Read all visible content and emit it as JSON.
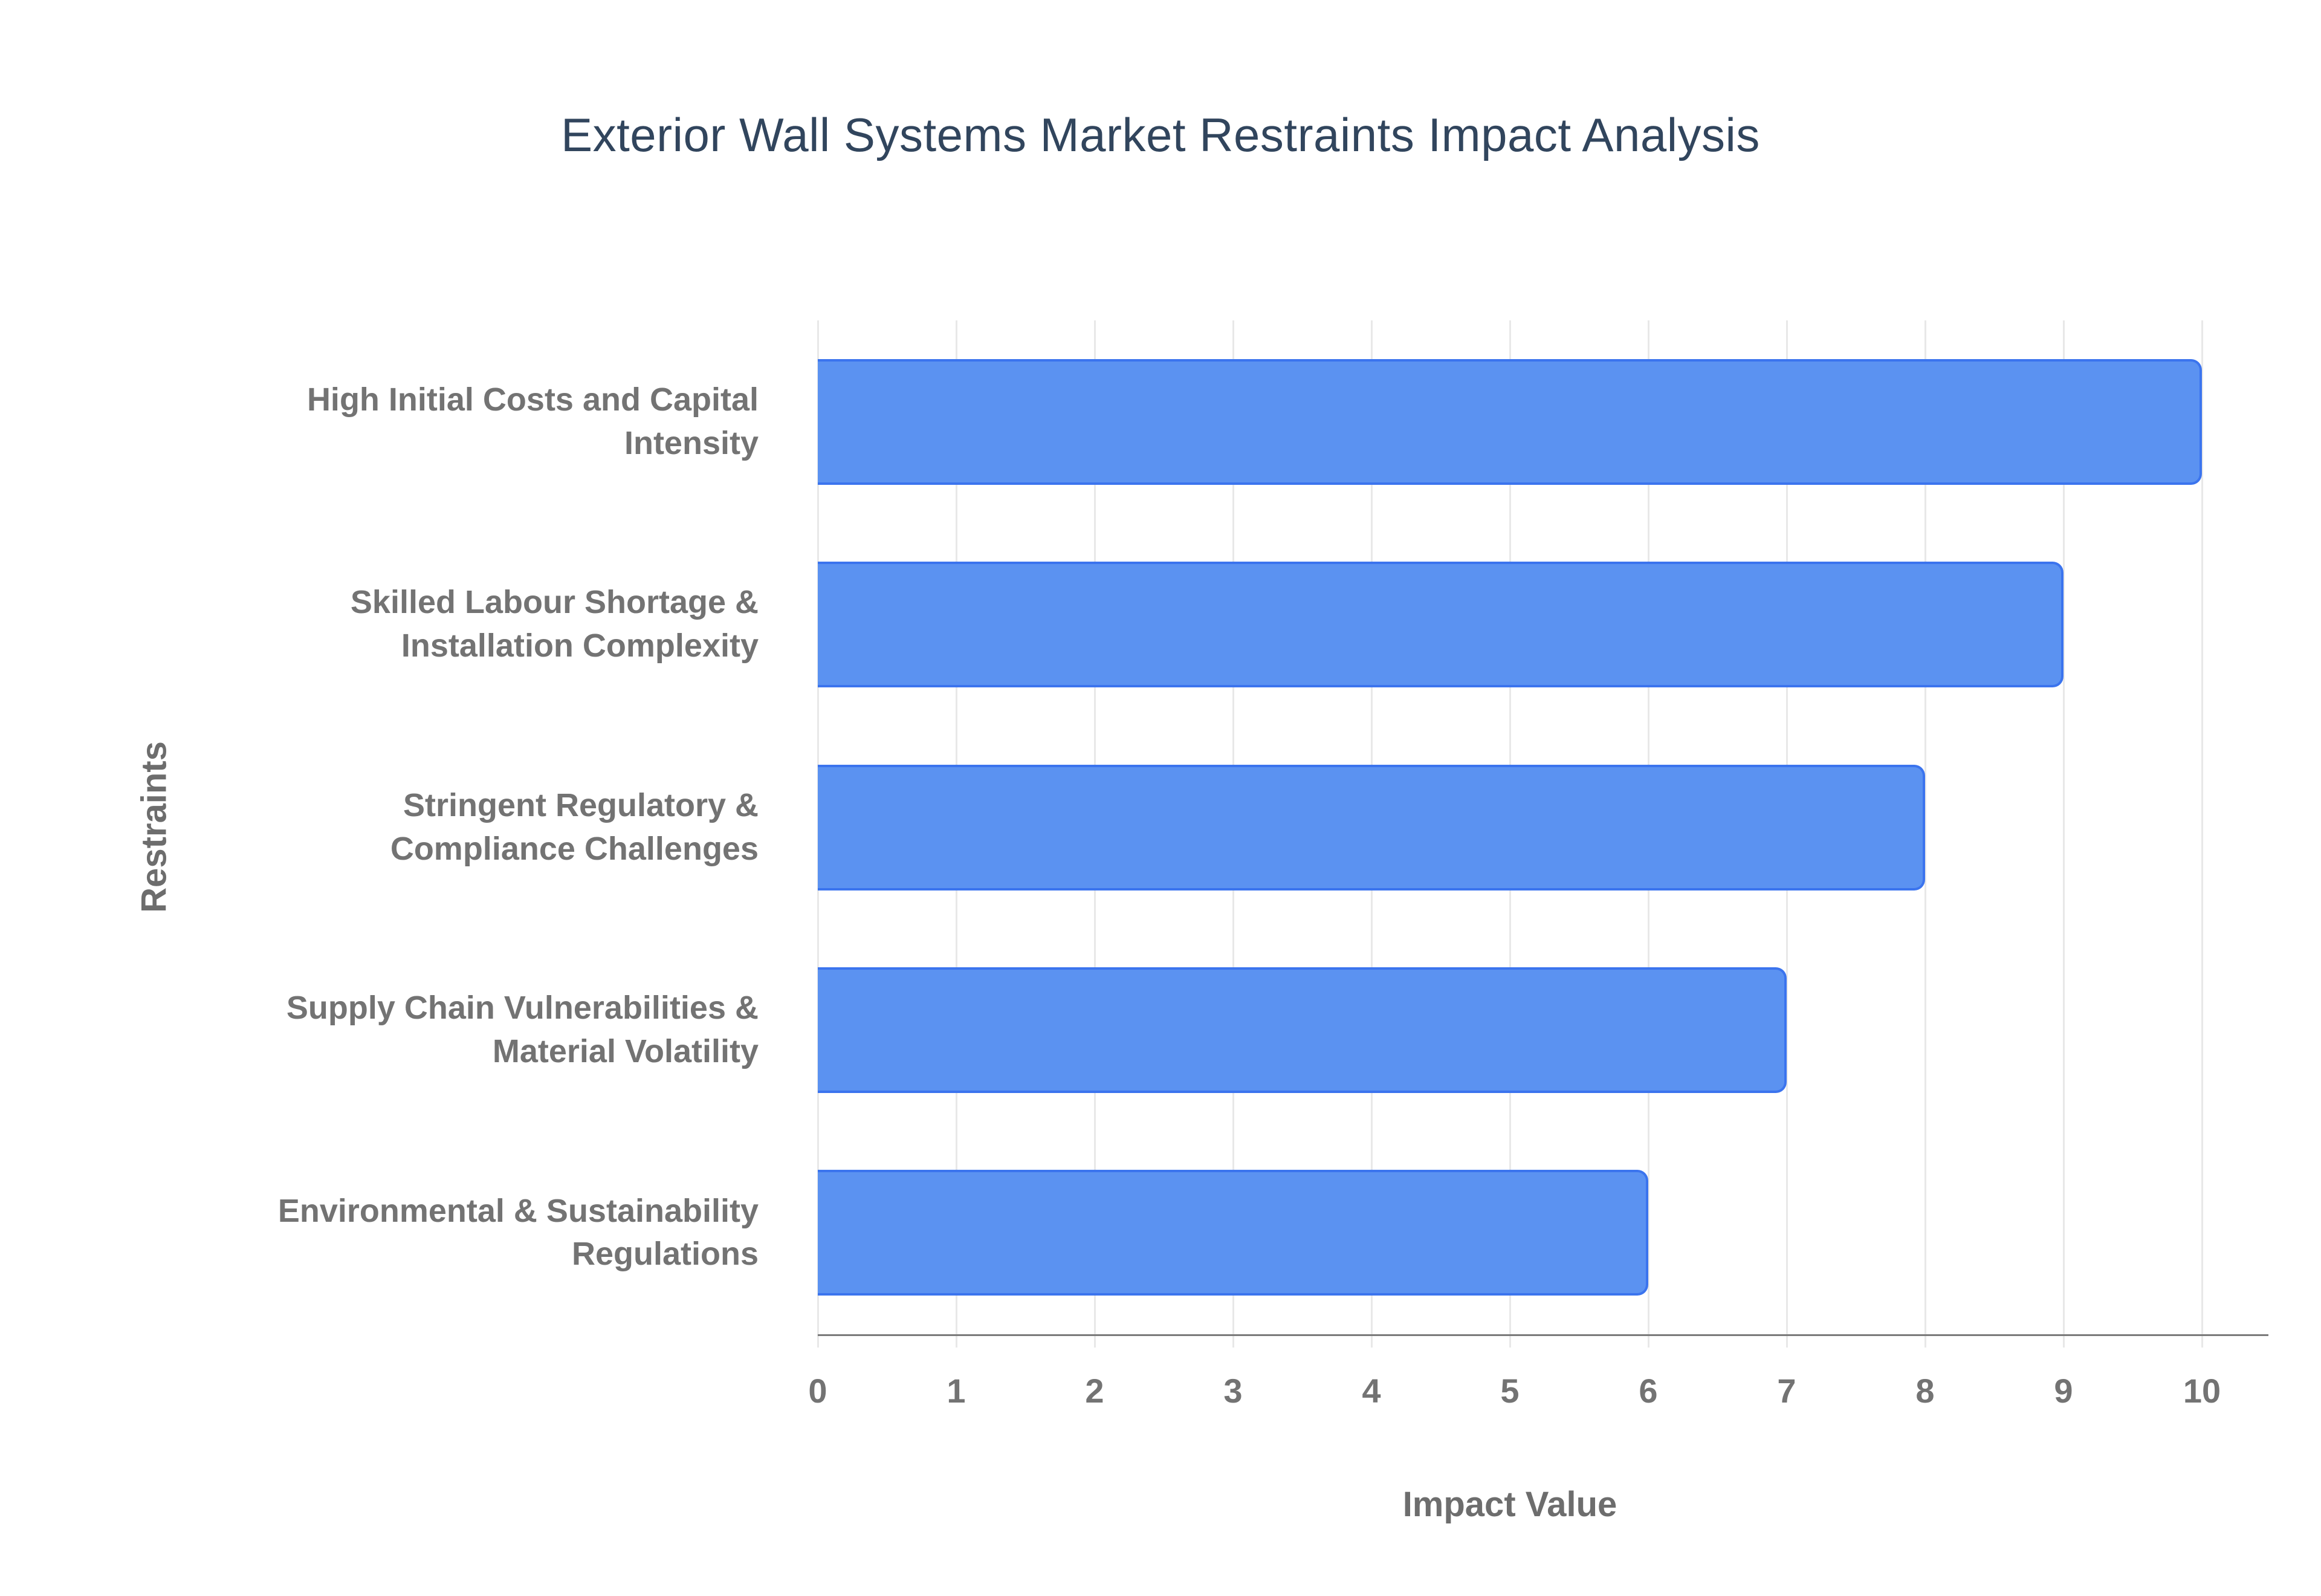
{
  "title": "Exterior Wall Systems Market Restraints Impact Analysis",
  "chart_data": {
    "type": "bar",
    "orientation": "horizontal",
    "title": "Exterior Wall Systems Market Restraints Impact Analysis",
    "categories": [
      "High Initial Costs and Capital Intensity",
      "Skilled Labour Shortage & Installation Complexity",
      "Stringent Regulatory & Compliance Challenges",
      "Supply Chain Vulnerabilities & Material Volatility",
      "Environmental & Sustainability Regulations"
    ],
    "values": [
      10,
      9,
      8,
      7,
      6
    ],
    "xlabel": "Impact Value",
    "ylabel": "Restraints",
    "xlim": [
      0,
      10
    ],
    "xticks": [
      0,
      1,
      2,
      3,
      4,
      5,
      6,
      7,
      8,
      9,
      10
    ],
    "grid": true,
    "legend": "none",
    "colors": {
      "bar_fill": "#5b92f1",
      "bar_border": "#3b74ee",
      "gridline": "#e8e8e8",
      "axis_line": "#7a7a7a",
      "tick_text": "#737373",
      "axis_title_text": "#6d6d6d",
      "title_text": "#31455d",
      "background": "#ffffff"
    }
  }
}
